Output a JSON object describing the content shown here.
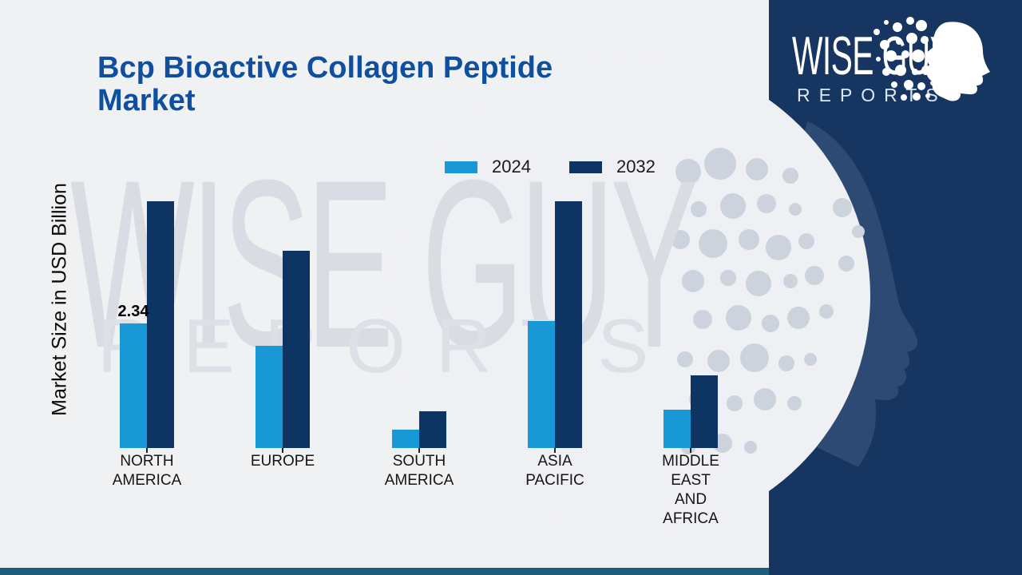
{
  "page": {
    "background_color": "#f0f1f3",
    "footer_bar_color": "#1d5f7b"
  },
  "brand": {
    "panel_color": "#163561",
    "line1": "WISE GUY",
    "line2": "REPORTS"
  },
  "watermark": {
    "line1": "WISE GUY",
    "line2": "REPORTS"
  },
  "chart_data": {
    "type": "bar",
    "title": "Bcp Bioactive Collagen Peptide Market",
    "title_color": "#0f4fa0",
    "ylabel": "Market Size in USD Billion",
    "xlabel": "",
    "ylim": [
      0,
      5
    ],
    "grid": false,
    "legend_position": "top",
    "categories": [
      "NORTH\nAMERICA",
      "EUROPE",
      "SOUTH\nAMERICA",
      "ASIA\nPACIFIC",
      "MIDDLE\nEAST\nAND\nAFRICA"
    ],
    "series": [
      {
        "name": "2024",
        "color": "#1899d6",
        "values": [
          2.34,
          1.92,
          0.35,
          2.39,
          0.72
        ]
      },
      {
        "name": "2032",
        "color": "#0e3464",
        "values": [
          4.64,
          3.71,
          0.69,
          4.64,
          1.37
        ]
      }
    ],
    "annotations": [
      {
        "series": "2024",
        "category_index": 0,
        "text": "2.34"
      }
    ]
  }
}
